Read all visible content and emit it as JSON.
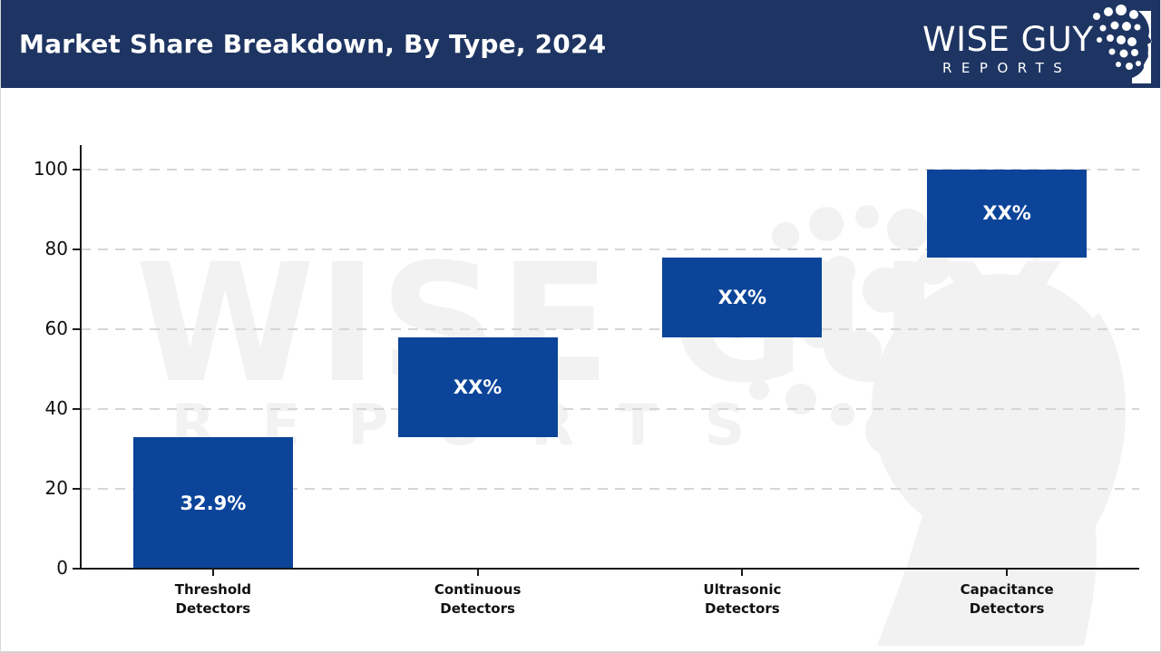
{
  "header": {
    "title": "Market Share Breakdown, By Type, 2024",
    "logo": {
      "wordmark": "WISE GUY",
      "sub": "REPORTS"
    }
  },
  "watermark": {
    "line1": "WISE GUY",
    "line2": "REPORTS"
  },
  "colors": {
    "header_bg": "#1e3563",
    "bar": "#0b4499",
    "bar_label": "#ffffff",
    "grid": "#d6d6d6",
    "axis": "#1a1a1a",
    "watermark": "#f2f2f2",
    "title_text": "#ffffff",
    "logo_text": "#ffffff"
  },
  "chart_data": {
    "type": "bar",
    "subtype": "waterfall",
    "title": "Market Share Breakdown, By Type, 2024",
    "categories": [
      "Threshold Detectors",
      "Continuous Detectors",
      "Ultrasonic Detectors",
      "Capacitance Detectors"
    ],
    "segments": [
      {
        "category": "Threshold Detectors",
        "start": 0,
        "end": 32.9,
        "label": "32.9%"
      },
      {
        "category": "Continuous Detectors",
        "start": 32.9,
        "end": 58,
        "label": "XX%"
      },
      {
        "category": "Ultrasonic Detectors",
        "start": 58,
        "end": 78,
        "label": "XX%"
      },
      {
        "category": "Capacitance Detectors",
        "start": 78,
        "end": 100,
        "label": "XX%"
      }
    ],
    "ylim": [
      0,
      100
    ],
    "yticks": [
      0,
      20,
      40,
      60,
      80,
      100
    ],
    "xlabel": "",
    "ylabel": "",
    "grid": "horizontal-dashed",
    "legend": "none",
    "bar_color": "#0b4499",
    "bar_label_color": "#ffffff"
  }
}
